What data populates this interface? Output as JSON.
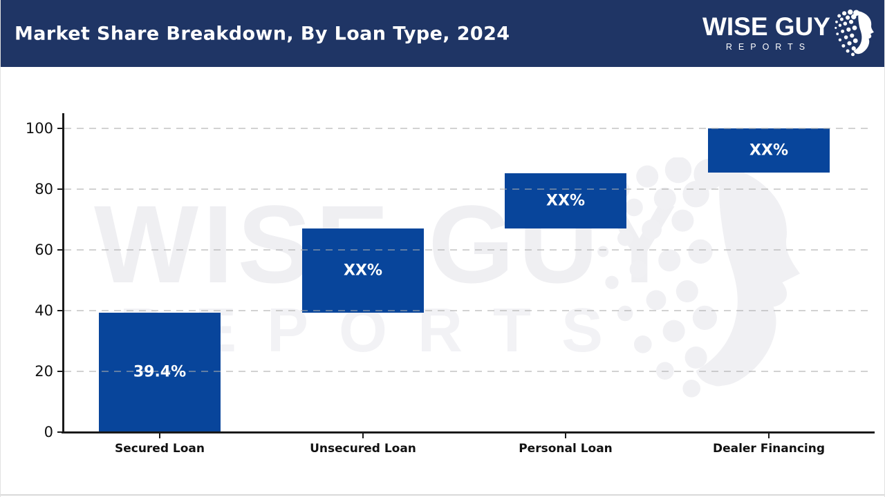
{
  "header": {
    "title": "Market Share Breakdown, By Loan Type, 2024",
    "bg_color": "#1f3565",
    "logo": {
      "line1": "WISE GUY",
      "line2": "REPORTS"
    }
  },
  "watermark": {
    "line1": "WISE GUY",
    "line2": "REPORTS"
  },
  "chart_data": {
    "type": "bar",
    "variant": "floating-waterfall",
    "title": "Market Share Breakdown, By Loan Type, 2024",
    "categories": [
      "Secured Loan",
      "Unsecured Loan",
      "Personal Loan",
      "Dealer Financing"
    ],
    "segments": [
      {
        "category": "Secured Loan",
        "from": 0,
        "to": 39.4,
        "label": "39.4%"
      },
      {
        "category": "Unsecured Loan",
        "from": 39.4,
        "to": 67.0,
        "label": "XX%"
      },
      {
        "category": "Personal Loan",
        "from": 67.0,
        "to": 85.3,
        "label": "XX%"
      },
      {
        "category": "Dealer Financing",
        "from": 85.5,
        "to": 100.0,
        "label": "XX%"
      }
    ],
    "xlabel": "",
    "ylabel": "",
    "ylim": [
      0,
      105
    ],
    "yticks": [
      0,
      20,
      40,
      60,
      80,
      100
    ],
    "grid": "horizontal-dashed, drawn above bars",
    "legend": "none",
    "bar_color": "#08459b",
    "bar_label_color": "#ffffff",
    "axis_color": "#1a1a1a",
    "tick_label_color": "#111111"
  }
}
